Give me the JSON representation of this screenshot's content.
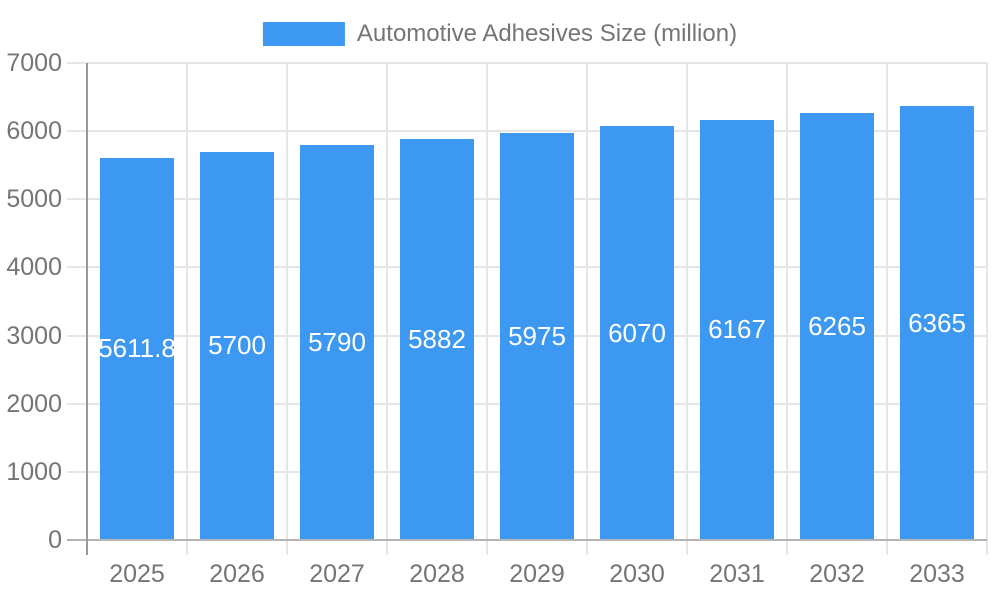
{
  "legend": {
    "label": "Automotive Adhesives Size (million)"
  },
  "colors": {
    "bar": "#3C98F0",
    "grid": "#E6E6E6",
    "baseline": "#B3B3B3",
    "axis_line": "#999999",
    "axis_text": "#757575",
    "value_text": "#FFFFFF"
  },
  "chart_data": {
    "type": "bar",
    "title": "",
    "legend": [
      "Automotive Adhesives Size (million)"
    ],
    "legend_position": "top-center",
    "categories": [
      "2025",
      "2026",
      "2027",
      "2028",
      "2029",
      "2030",
      "2031",
      "2032",
      "2033"
    ],
    "values": [
      5611.8,
      5700,
      5790,
      5882,
      5975,
      6070,
      6167,
      6265,
      6365
    ],
    "value_labels_visible": true,
    "xlabel": "",
    "ylabel": "",
    "ylim": [
      0,
      7000
    ],
    "yticks": [
      0,
      1000,
      2000,
      3000,
      4000,
      5000,
      6000,
      7000
    ],
    "grid": true
  }
}
